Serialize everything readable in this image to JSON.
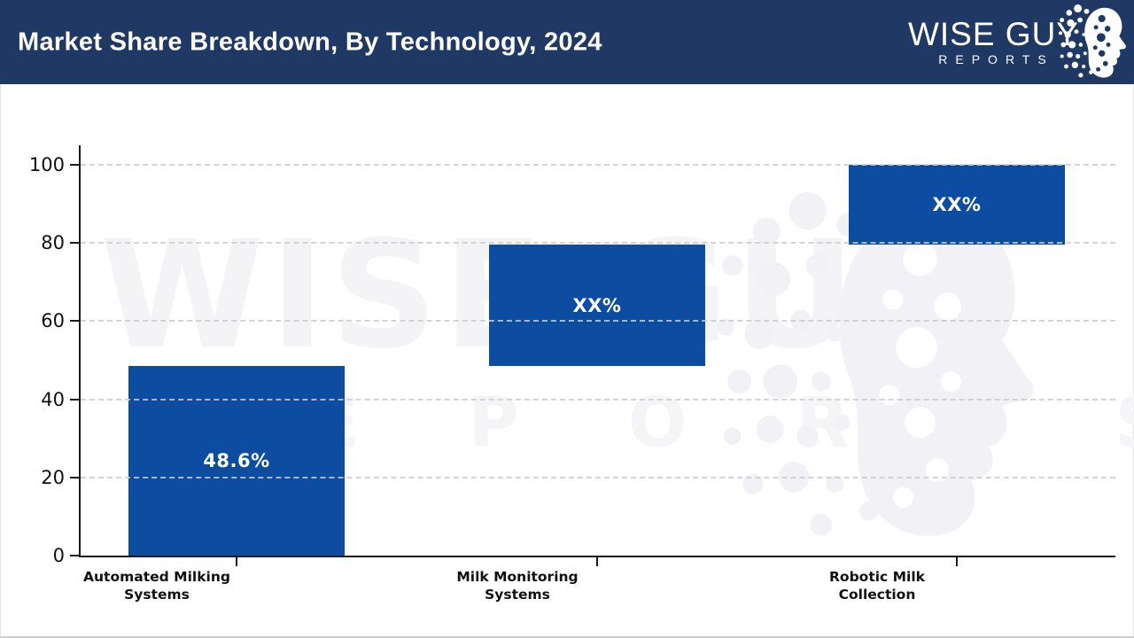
{
  "header": {
    "title": "Market Share Breakdown, By Technology, 2024",
    "logo": {
      "line1": "WISE GUY",
      "line2": "REPORTS",
      "face_icon": "dotted-face-profile-icon"
    }
  },
  "watermark": {
    "line1": "WISE GUY",
    "line2": "R E P O R T S",
    "face_icon": "dotted-face-profile-icon"
  },
  "colors": {
    "header_bg": "#1f3864",
    "bar_fill": "#0c4da2",
    "bar_label_text": "#ffffff",
    "axis": "#1a1a1a",
    "gridline": "#cccccc",
    "watermark": "#f4f4f7",
    "background": "#ffffff"
  },
  "chart_data": {
    "type": "bar",
    "subtype": "floating-waterfall",
    "title": "Market Share Breakdown, By Technology, 2024",
    "categories": [
      "Automated Milking Systems",
      "Milk Monitoring Systems",
      "Robotic Milk Collection"
    ],
    "series": [
      {
        "name": "Market Share (%)",
        "segments": [
          {
            "category": "Automated Milking Systems",
            "start": 0,
            "end": 48.6,
            "label": "48.6%"
          },
          {
            "category": "Milk Monitoring Systems",
            "start": 48.6,
            "end": 79.5,
            "label": "XX%"
          },
          {
            "category": "Robotic Milk Collection",
            "start": 79.5,
            "end": 100,
            "label": "XX%"
          }
        ]
      }
    ],
    "xlabel": "",
    "ylabel": "",
    "ylim": [
      0,
      105
    ],
    "yticks": [
      0,
      20,
      40,
      60,
      80,
      100
    ],
    "grid": "horizontal-dashed",
    "grid_above_bars": true,
    "legend": "none"
  },
  "x_labels": [
    {
      "line1": "Automated Milking",
      "line2": "Systems"
    },
    {
      "line1": "Milk Monitoring",
      "line2": "Systems"
    },
    {
      "line1": "Robotic Milk",
      "line2": "Collection"
    }
  ]
}
